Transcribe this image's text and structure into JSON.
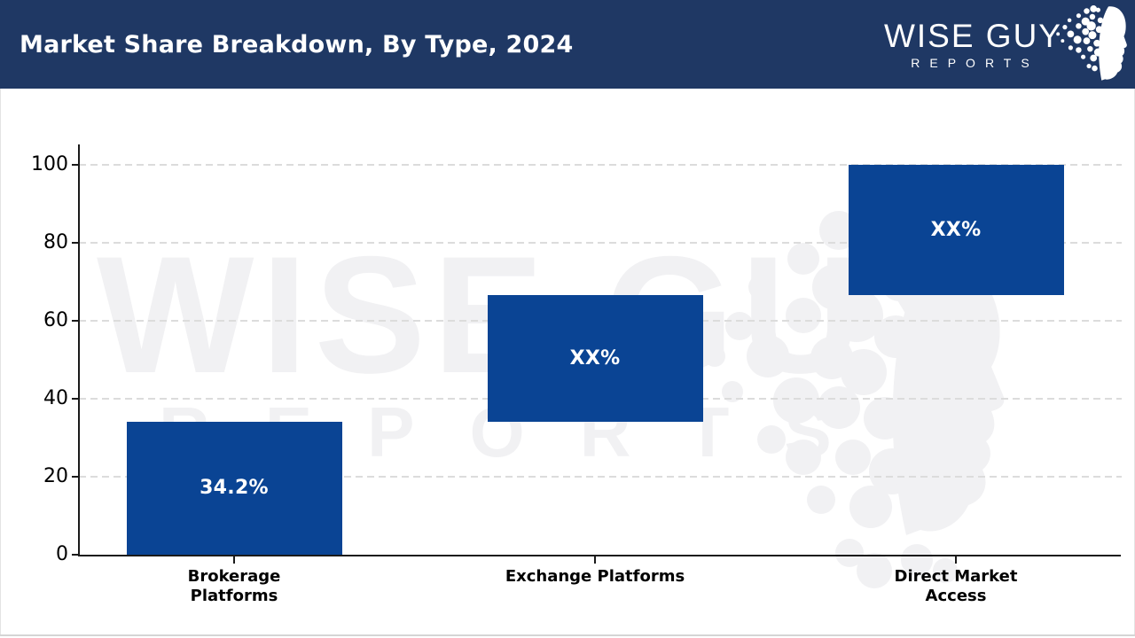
{
  "header": {
    "title": "Market Share Breakdown, By Type, 2024",
    "logo": {
      "wordmark": "WISE GUY",
      "subtext": "REPORTS"
    }
  },
  "watermark": {
    "wordmark": "WISE GUY",
    "subtext": "REPORTS"
  },
  "chart_data": {
    "type": "bar",
    "subtype": "waterfall",
    "title": "Market Share Breakdown, By Type, 2024",
    "categories": [
      "Brokerage Platforms",
      "Exchange Platforms",
      "Direct Market Access"
    ],
    "category_label_lines": [
      [
        "Brokerage",
        "Platforms"
      ],
      [
        "Exchange Platforms"
      ],
      [
        "Direct Market",
        "Access"
      ]
    ],
    "bars": [
      {
        "category": "Brokerage Platforms",
        "start": 0,
        "end": 34.2,
        "label": "34.2%"
      },
      {
        "category": "Exchange Platforms",
        "start": 34.2,
        "end": 66.6,
        "label": "XX%"
      },
      {
        "category": "Direct Market Access",
        "start": 66.6,
        "end": 100,
        "label": "XX%"
      }
    ],
    "xlabel": "",
    "ylabel": "",
    "ylim": [
      0,
      105
    ],
    "yticks": [
      0,
      20,
      40,
      60,
      80,
      100
    ],
    "grid": "horizontal-dashed",
    "legend": "none",
    "colors": {
      "bar": "#0a4494",
      "bar_label": "#ffffff",
      "grid": "#dcdcdc",
      "axis": "#1a1a1a",
      "tick_label": "#000000"
    }
  },
  "colors": {
    "header_bg": "#1f3864",
    "page_bg": "#ffffff",
    "watermark": "#f1f1f3",
    "logo_text": "#ffffff"
  }
}
